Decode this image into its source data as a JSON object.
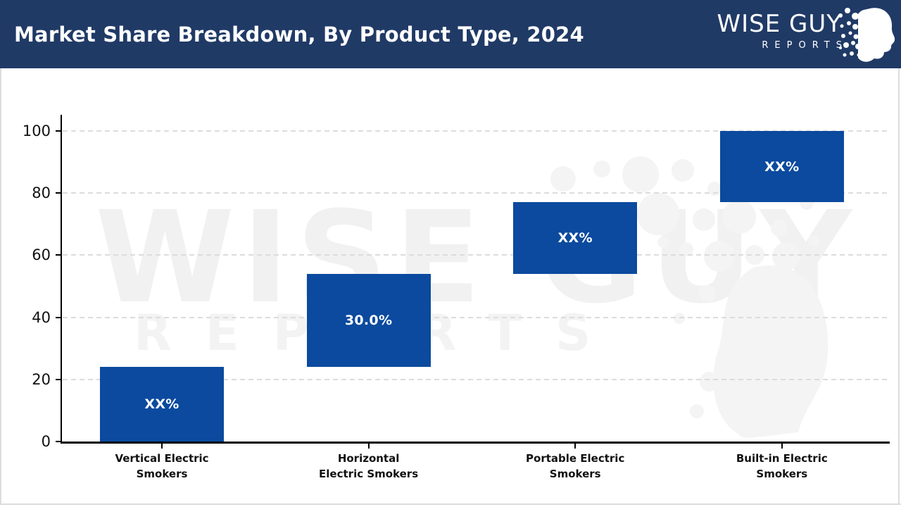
{
  "header": {
    "title": "Market Share Breakdown, By Product Type, 2024",
    "logo": {
      "line1": "WISE GUY",
      "line2": "REPORTS"
    }
  },
  "watermark": {
    "line1": "WISE GUY",
    "line2": "REPORTS"
  },
  "colors": {
    "header_bg": "#203a66",
    "bar": "#0b4a9e",
    "grid": "#dcdcdc",
    "axis": "#000000",
    "bar_label": "#ffffff",
    "watermark": "#f1f1f1"
  },
  "chart_data": {
    "type": "bar",
    "variant": "floating-segment-waterfall",
    "title": "Market Share Breakdown, By Product Type, 2024",
    "categories": [
      "Vertical Electric\nSmokers",
      "Horizontal\nElectric Smokers",
      "Portable Electric\nSmokers",
      "Built-in Electric\nSmokers"
    ],
    "bars": [
      {
        "start": 0,
        "end": 24,
        "label": "XX%"
      },
      {
        "start": 24,
        "end": 54,
        "label": "30.0%"
      },
      {
        "start": 54,
        "end": 77,
        "label": "XX%"
      },
      {
        "start": 77,
        "end": 100,
        "label": "XX%"
      }
    ],
    "xlabel": "",
    "ylabel": "",
    "ylim": [
      0,
      105
    ],
    "yticks": [
      0,
      20,
      40,
      60,
      80,
      100
    ],
    "grid": "horizontal-dashed",
    "legend": "none",
    "bar_color": "#0b4a9e"
  }
}
